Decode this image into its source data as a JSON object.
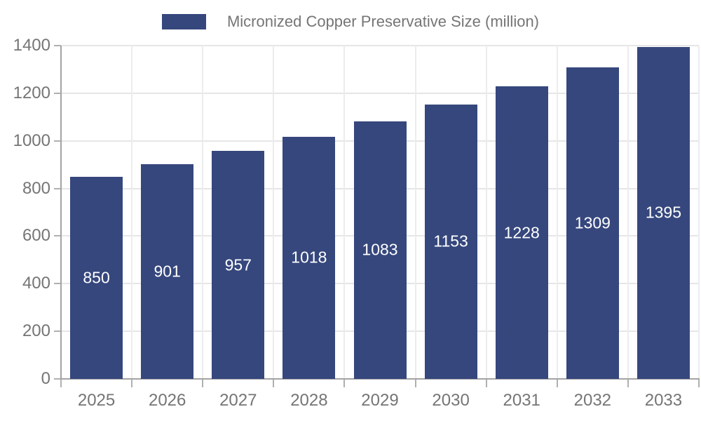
{
  "legend": {
    "label": "Micronized Copper Preservative Size (million)"
  },
  "chart_data": {
    "type": "bar",
    "title": "Micronized Copper Preservative Size (million)",
    "categories": [
      "2025",
      "2026",
      "2027",
      "2028",
      "2029",
      "2030",
      "2031",
      "2032",
      "2033"
    ],
    "values": [
      850,
      901,
      957,
      1018,
      1083,
      1153,
      1228,
      1309,
      1395
    ],
    "series": [
      {
        "name": "Micronized Copper Preservative Size (million)",
        "values": [
          850,
          901,
          957,
          1018,
          1083,
          1153,
          1228,
          1309,
          1395
        ]
      }
    ],
    "xlabel": "",
    "ylabel": "",
    "ylim": [
      0,
      1400
    ],
    "yticks": [
      0,
      200,
      400,
      600,
      800,
      1000,
      1200,
      1400
    ],
    "grid": true,
    "legend_position": "top-center",
    "colors": {
      "bar": "#36477d",
      "value_label": "#ffffff",
      "axis_label": "#757575",
      "title": "#757575",
      "gridline_h": "#e6e6e6",
      "gridline_v": "#ececec",
      "axis_line": "#a3a3a3",
      "tick": "#b0b0b0",
      "background": "#ffffff"
    }
  }
}
